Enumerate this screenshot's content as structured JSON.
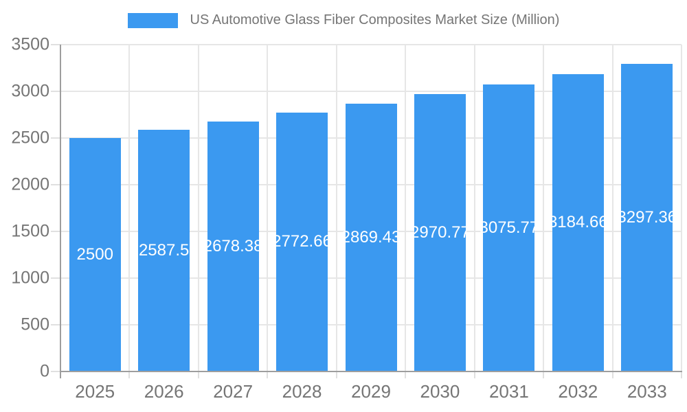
{
  "legend": {
    "title": "US Automotive Glass Fiber Composites Market Size (Million)"
  },
  "chart_data": {
    "type": "bar",
    "title": "US Automotive Glass Fiber Composites Market Size (Million)",
    "categories": [
      "2025",
      "2026",
      "2027",
      "2028",
      "2029",
      "2030",
      "2031",
      "2032",
      "2033"
    ],
    "values": [
      2500,
      2587.5,
      2678.38,
      2772.66,
      2869.43,
      2970.77,
      3075.77,
      3184.66,
      3297.36
    ],
    "bar_labels": [
      "2500",
      "2587.5",
      "2678.38",
      "2772.66",
      "2869.43",
      "2970.77",
      "3075.77",
      "3184.66",
      "3297.36"
    ],
    "xlabel": "",
    "ylabel": "",
    "ylim": [
      0,
      3500
    ],
    "ytick_step": 500,
    "ytick_labels": [
      "0",
      "500",
      "1000",
      "1500",
      "2000",
      "2500",
      "3000",
      "3500"
    ],
    "grid": true,
    "legend_position": "top",
    "colors": {
      "bar": "#3B99F0",
      "grid": "#E6E6E6",
      "tick": "#E0E0E0",
      "axis": "#9E9E9E",
      "text": "#757575",
      "bar_label": "#FFFFFF",
      "background": "#FFFFFF"
    }
  }
}
